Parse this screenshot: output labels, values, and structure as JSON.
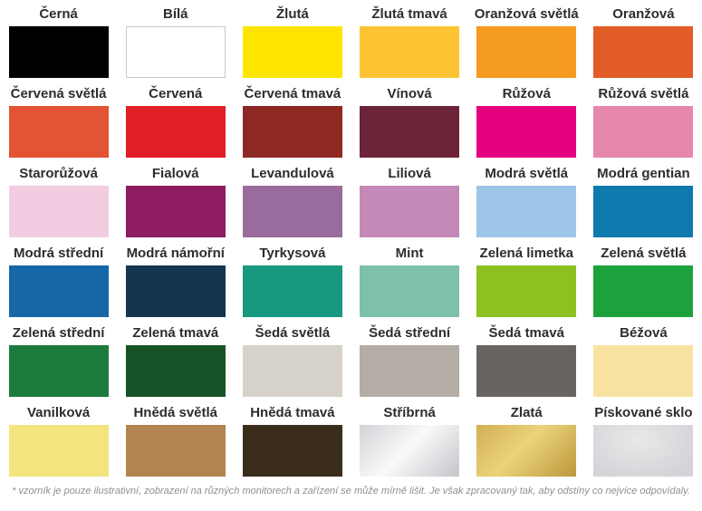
{
  "palette": {
    "swatches": [
      {
        "label": "Černá",
        "fill": "#000000"
      },
      {
        "label": "Bílá",
        "fill": "#ffffff",
        "border": "#c9c9c9"
      },
      {
        "label": "Žlutá",
        "fill": "#fde500"
      },
      {
        "label": "Žlutá tmavá",
        "fill": "#fcc433"
      },
      {
        "label": "Oranžová světlá",
        "fill": "#f49b20"
      },
      {
        "label": "Oranžová",
        "fill": "#e25c28"
      },
      {
        "label": "Červená světlá",
        "fill": "#e35434"
      },
      {
        "label": "Červená",
        "fill": "#e01f26"
      },
      {
        "label": "Červená tmavá",
        "fill": "#8e2823"
      },
      {
        "label": "Vínová",
        "fill": "#6c2538"
      },
      {
        "label": "Růžová",
        "fill": "#e5007e"
      },
      {
        "label": "Růžová světlá",
        "fill": "#e687ae"
      },
      {
        "label": "Starorůžová",
        "fill": "#f4cce1"
      },
      {
        "label": "Fialová",
        "fill": "#8e1c60"
      },
      {
        "label": "Levandulová",
        "fill": "#9a6b9d"
      },
      {
        "label": "Liliová",
        "fill": "#c389b7"
      },
      {
        "label": "Modrá světlá",
        "fill": "#9ec4e8"
      },
      {
        "label": "Modrá gentian",
        "fill": "#0f7aae"
      },
      {
        "label": "Modrá střední",
        "fill": "#1567a8"
      },
      {
        "label": "Modrá námořní",
        "fill": "#143550"
      },
      {
        "label": "Tyrkysová",
        "fill": "#16997f"
      },
      {
        "label": "Mint",
        "fill": "#7dc1a9"
      },
      {
        "label": "Zelená limetka",
        "fill": "#8dc021"
      },
      {
        "label": "Zelená světlá",
        "fill": "#1ca23c"
      },
      {
        "label": "Zelená střední",
        "fill": "#1e7b3e"
      },
      {
        "label": "Zelená tmavá",
        "fill": "#165427"
      },
      {
        "label": "Šedá světlá",
        "fill": "#d6d2c9"
      },
      {
        "label": "Šedá střední",
        "fill": "#b3ada5"
      },
      {
        "label": "Šedá tmavá",
        "fill": "#676462"
      },
      {
        "label": "Béžová",
        "fill": "#f8e2a2"
      },
      {
        "label": "Vanilková",
        "fill": "#f3e480"
      },
      {
        "label": "Hnědá světlá",
        "fill": "#b28450"
      },
      {
        "label": "Hnědá tmavá",
        "fill": "#3a2d1b"
      },
      {
        "label": "Stříbrná",
        "fill": "linear-gradient(135deg, #d2d4d7 0%, #f8f9fa 48%, #c3c5c9 100%)"
      },
      {
        "label": "Zlatá",
        "fill": "linear-gradient(135deg, #d3af55 0%, #ead379 45%, #bd983d 100%)"
      },
      {
        "label": "Pískované sklo",
        "fill": "radial-gradient(ellipse at 45% 30%, #e7e8e9 0%, #d2d4d7 80%)"
      }
    ]
  },
  "footnote": {
    "text": "* vzorník je pouze ilustrativní, zobrazení na různých monitorech a zařízení se může mírně lišit. Je však zpracovaný tak, aby odstíny co nejvíce odpovídaly.",
    "color": "#8f8f8f"
  }
}
